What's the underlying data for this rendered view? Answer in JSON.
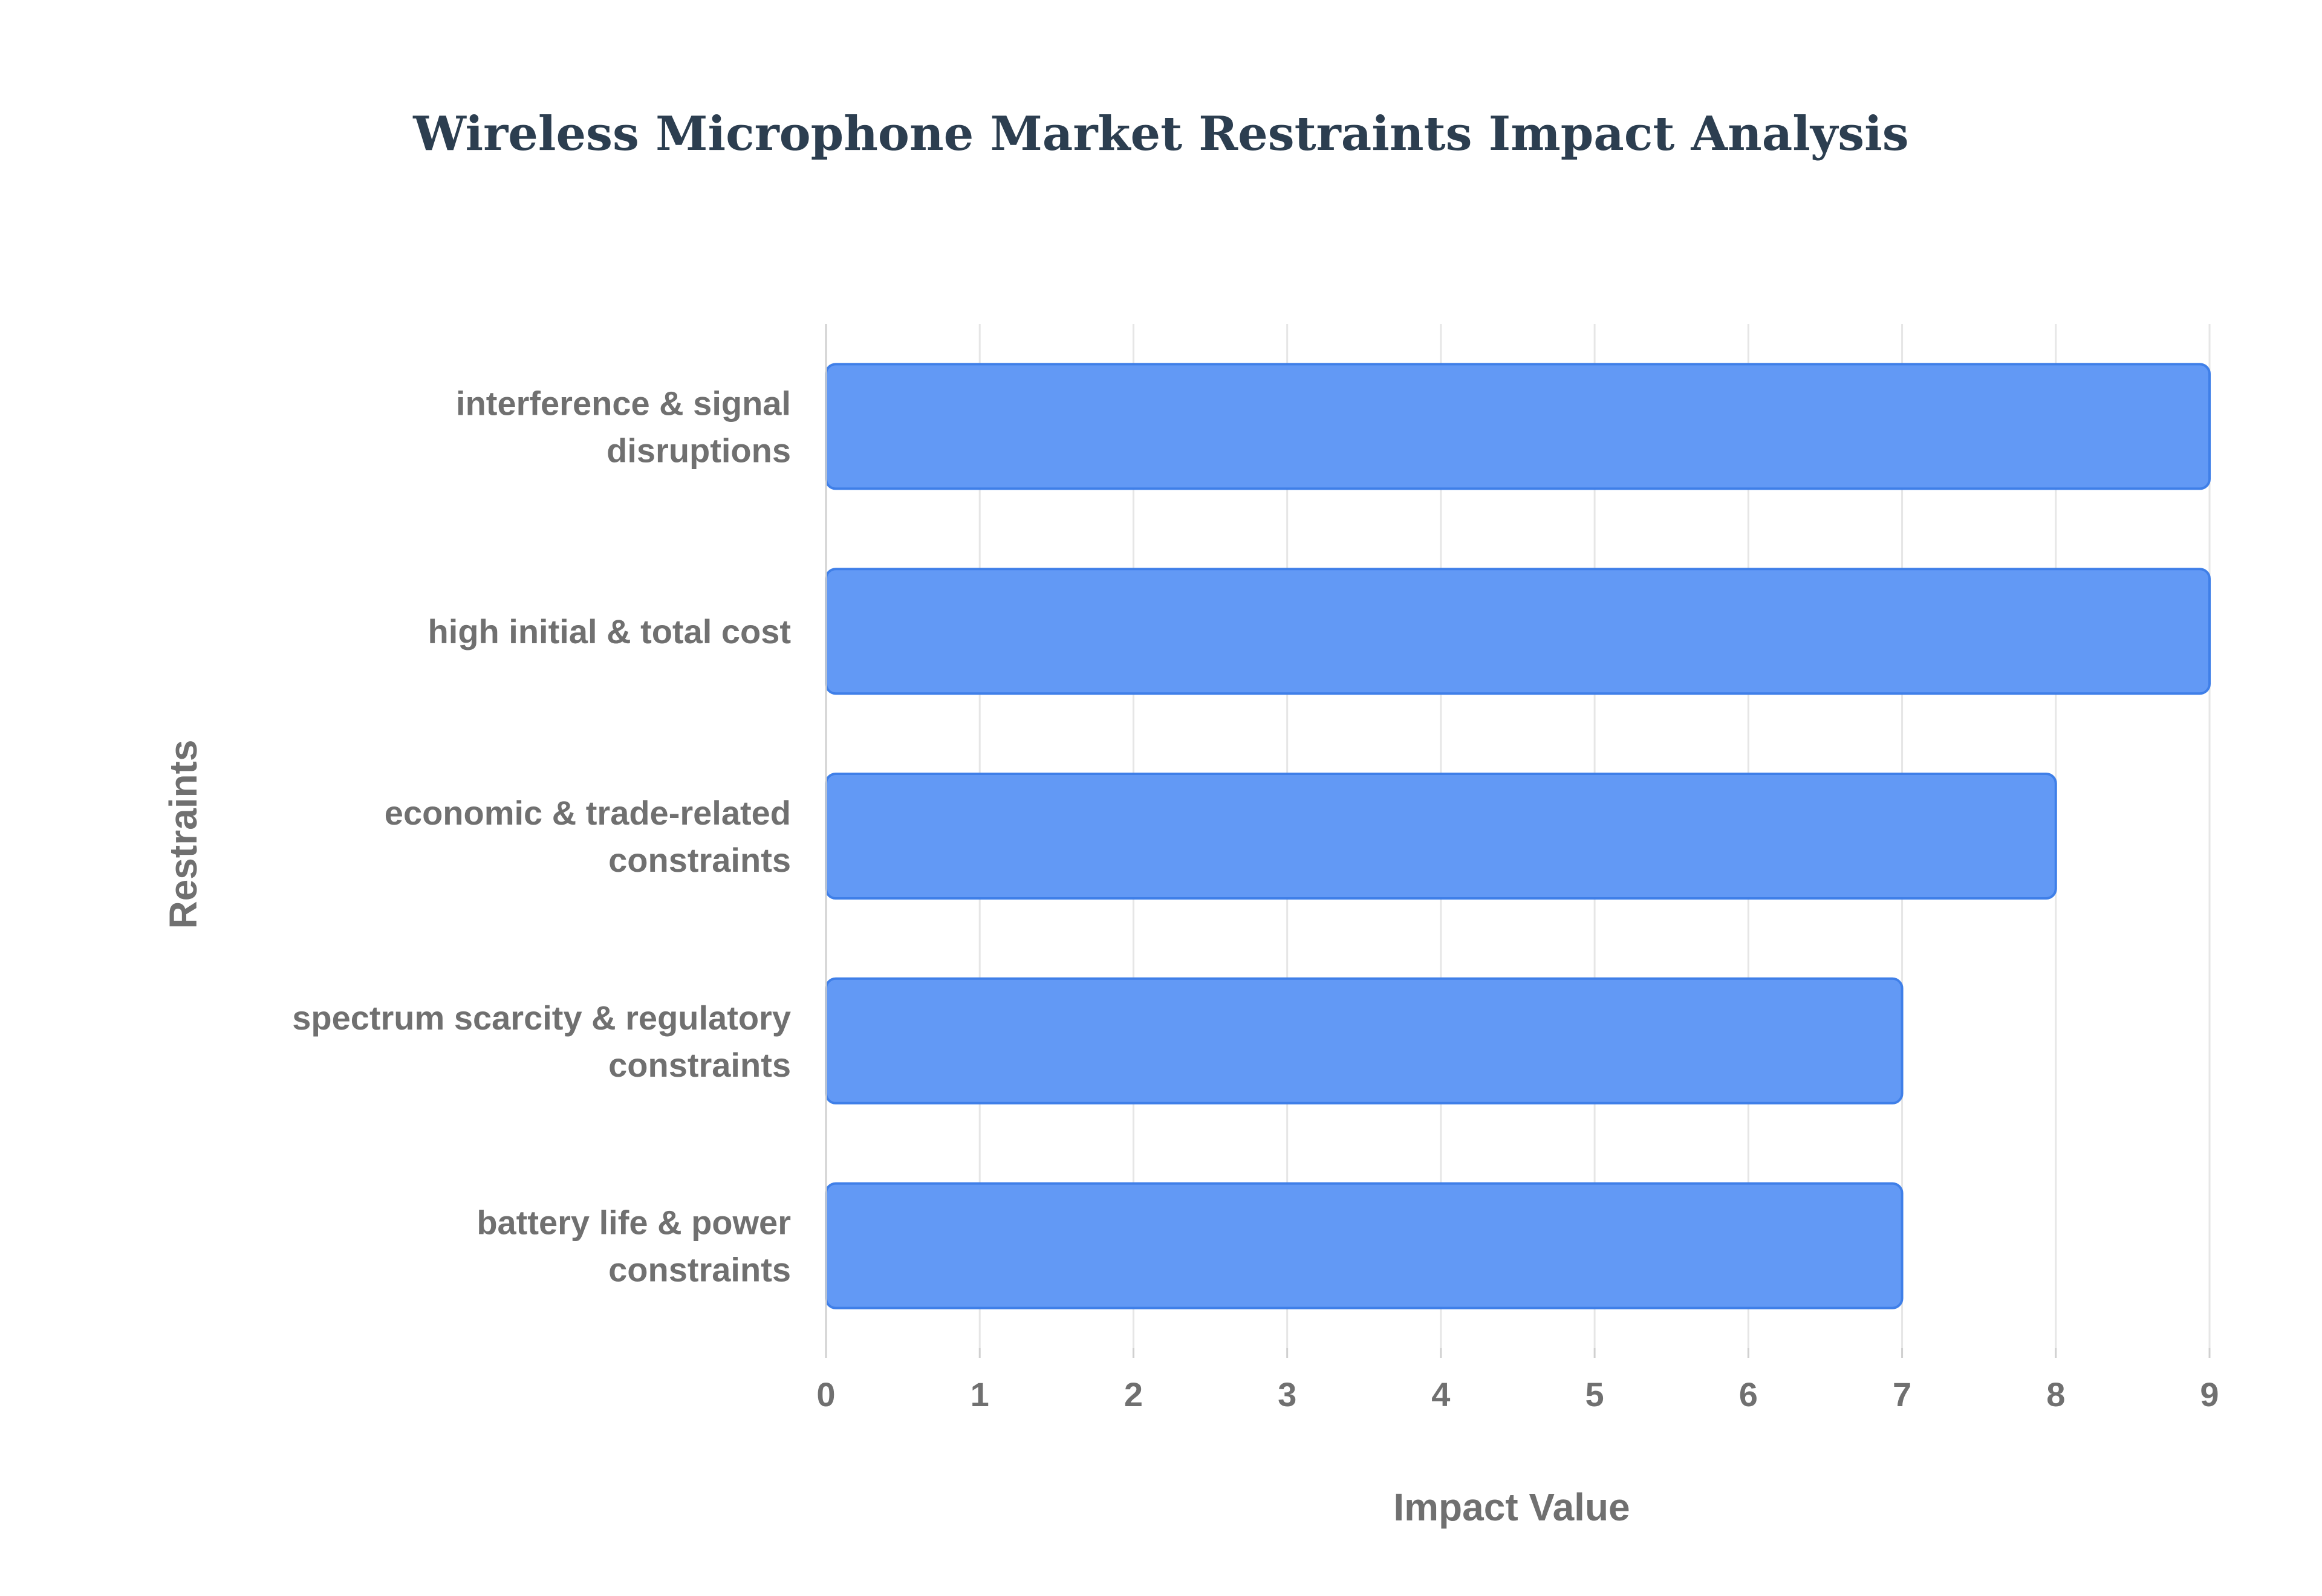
{
  "colors": {
    "title": "#2c3e50",
    "axis_text": "#707070",
    "grid": "#e6e6e6",
    "axis_line": "#d0d0d0",
    "bar_fill": "#6299f5",
    "bar_stroke": "#3f7fe8"
  },
  "chart_data": {
    "type": "bar",
    "orientation": "horizontal",
    "title": "Wireless Microphone Market Restraints Impact Analysis",
    "xlabel": "Impact Value",
    "ylabel": "Restraints",
    "xlim": [
      0,
      9
    ],
    "xticks": [
      "0",
      "1",
      "2",
      "3",
      "4",
      "5",
      "6",
      "7",
      "8",
      "9"
    ],
    "grid": true,
    "legend": "none",
    "categories": [
      [
        "interference & signal",
        "disruptions"
      ],
      [
        "high initial & total cost"
      ],
      [
        "economic & trade-related",
        "constraints"
      ],
      [
        "spectrum scarcity & regulatory",
        "constraints"
      ],
      [
        "battery life & power",
        "constraints"
      ]
    ],
    "values": [
      9,
      9,
      8,
      7,
      7
    ]
  }
}
